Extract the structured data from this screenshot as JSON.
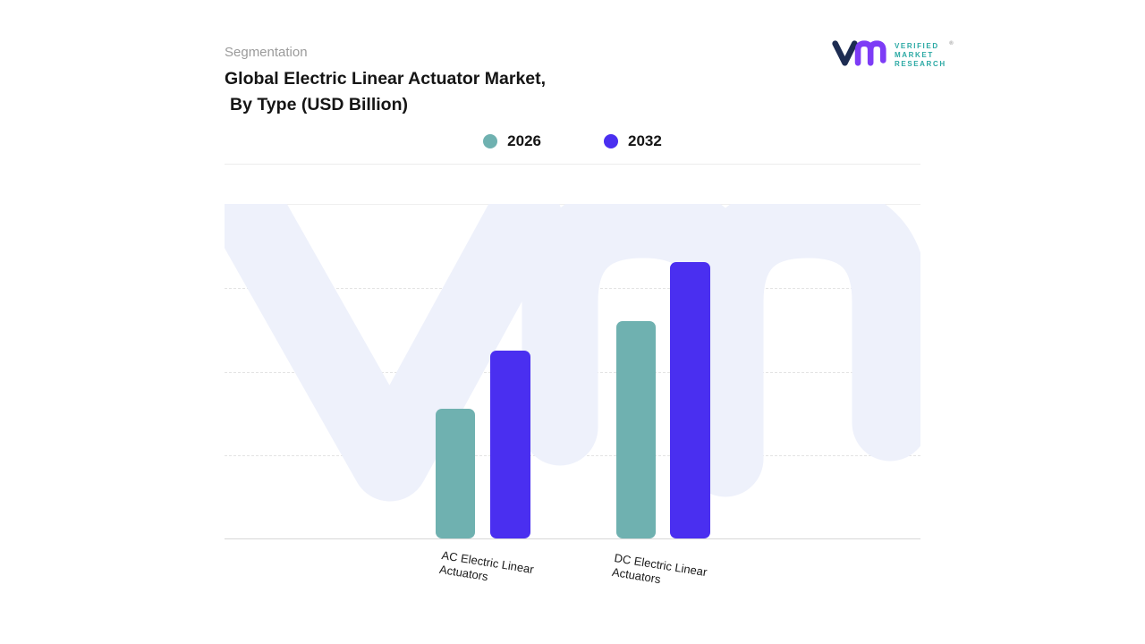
{
  "header": {
    "eyebrow": "Segmentation",
    "title_line1": "Global Electric Linear Actuator Market,",
    "title_line2": "By Type (USD Billion)"
  },
  "logo": {
    "line1": "VERIFIED",
    "line2": "MARKET",
    "line3": "RESEARCH",
    "reg_mark": "®",
    "mark_navy": "#1d2c52",
    "mark_purple": "#7d3cf6",
    "text_color": "#2ba9a4"
  },
  "legend": [
    {
      "label": "2026",
      "color": "#6fb1b0"
    },
    {
      "label": "2032",
      "color": "#4a2ff0"
    }
  ],
  "chart_data": {
    "type": "bar",
    "title": "Global Electric Linear Actuator Market, By Type (USD Billion)",
    "categories": [
      "AC Electric Linear Actuators",
      "DC Electric Linear Actuators"
    ],
    "series": [
      {
        "name": "2026",
        "color": "#6fb1b0",
        "values": [
          1.55,
          2.6
        ]
      },
      {
        "name": "2032",
        "color": "#4a2ff0",
        "values": [
          2.25,
          3.3
        ]
      }
    ],
    "xlabel": "",
    "ylabel": "",
    "ylim": [
      0,
      4
    ],
    "grid": "dashed-horizontal",
    "legend_position": "top-center"
  },
  "watermark": {
    "name": "vmr-watermark",
    "color": "#eef1fb"
  }
}
